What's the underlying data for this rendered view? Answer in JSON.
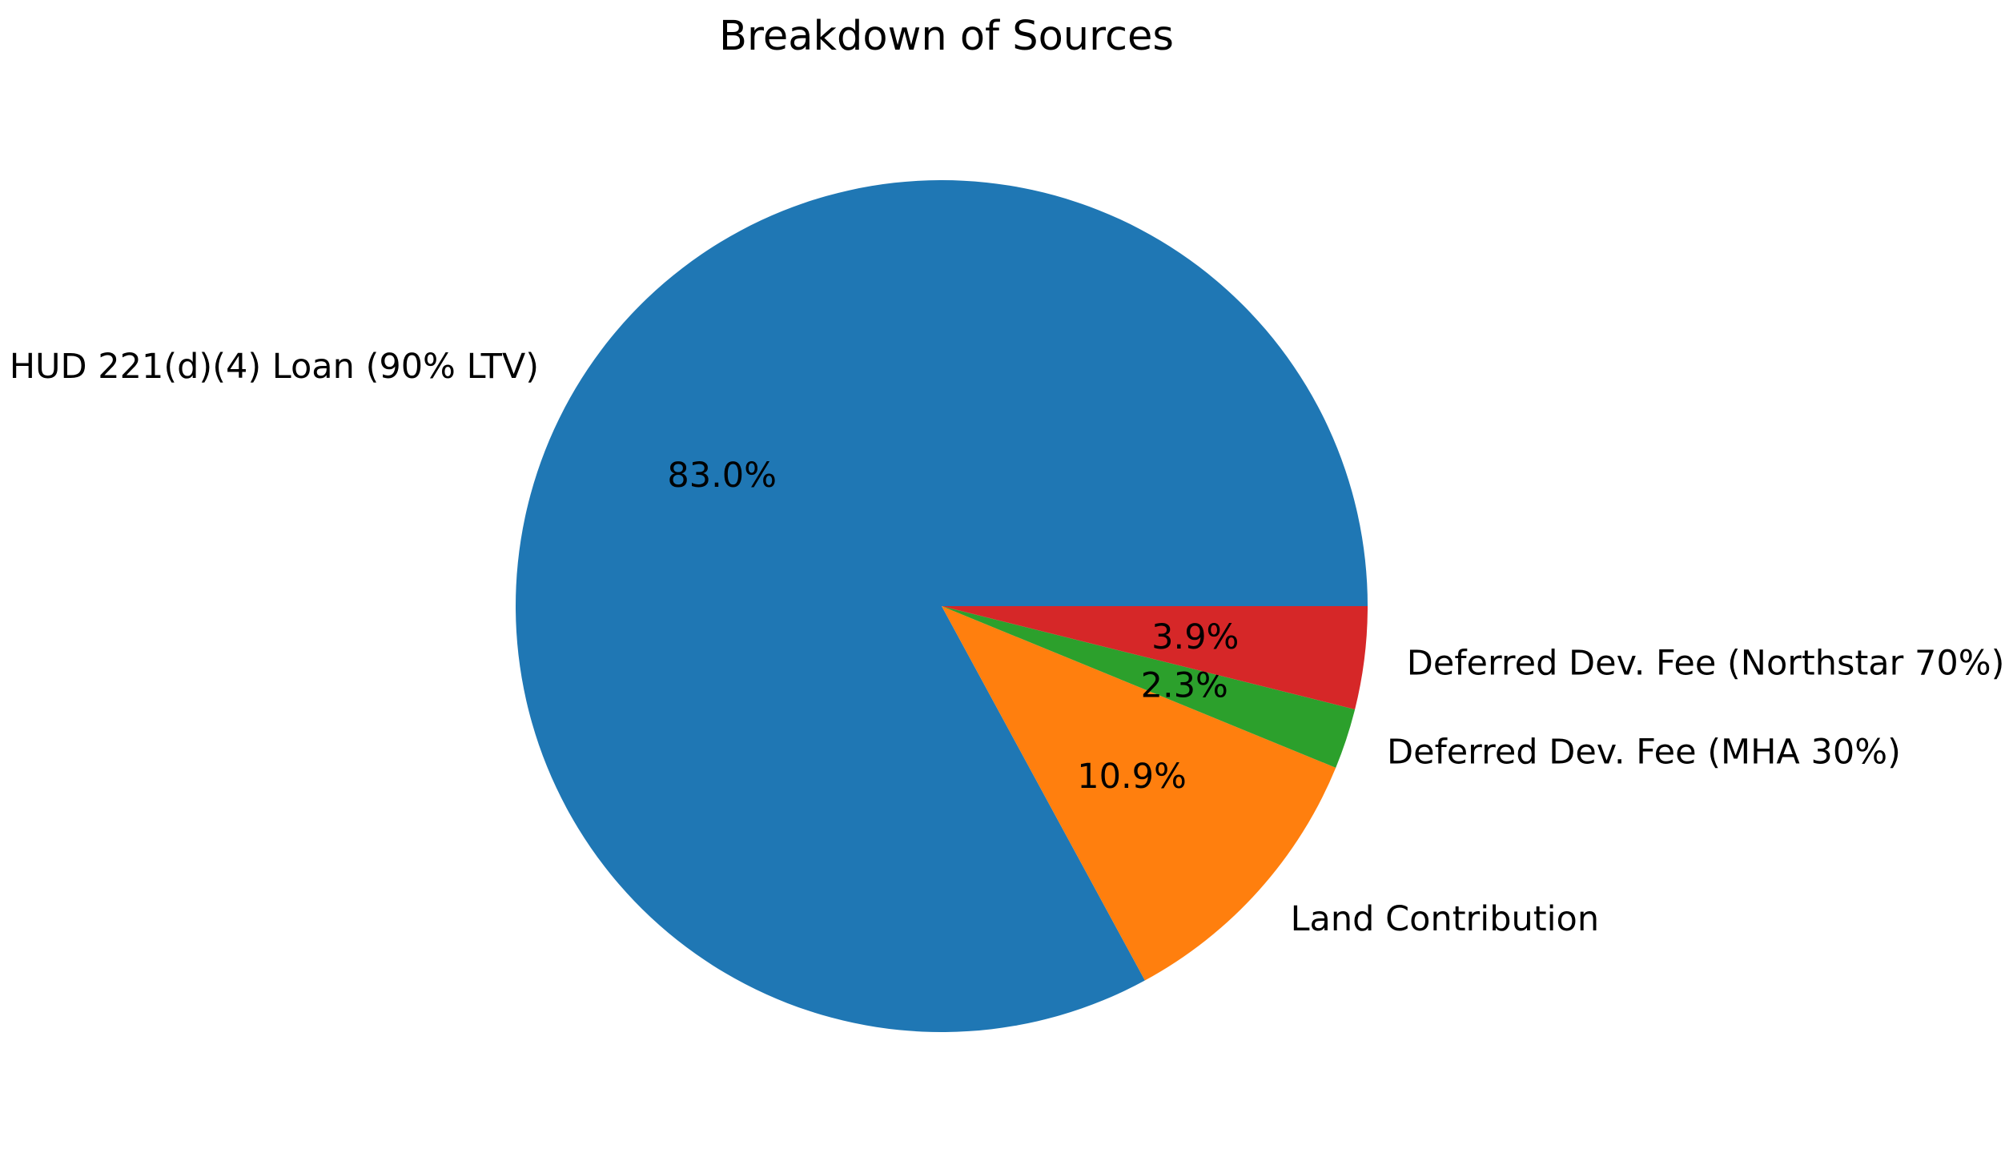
{
  "chart_data": {
    "type": "pie",
    "title": "Breakdown of Sources",
    "start_angle_deg": 0,
    "direction": "counterclockwise",
    "label_distance": 1.1,
    "pct_distance": 0.6,
    "background_color": "#ffffff",
    "text_color": "#000000",
    "legend": "none",
    "slices": [
      {
        "label": "HUD 221(d)(4) Loan (90% LTV)",
        "value": 83.0,
        "pct_label": "83.0%",
        "color": "#1f77b4"
      },
      {
        "label": "Land Contribution",
        "value": 10.9,
        "pct_label": "10.9%",
        "color": "#ff7f0e"
      },
      {
        "label": "Deferred Dev. Fee (MHA 30%)",
        "value": 2.3,
        "pct_label": "2.3%",
        "color": "#2ca02c"
      },
      {
        "label": "Deferred Dev. Fee (Northstar 70%)",
        "value": 3.9,
        "pct_label": "3.9%",
        "color": "#d62728"
      }
    ]
  }
}
